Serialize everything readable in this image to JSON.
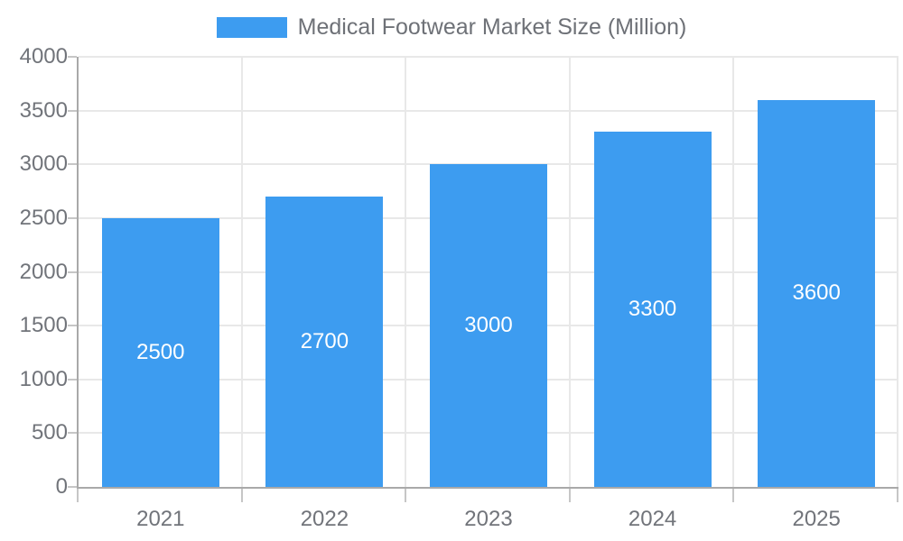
{
  "chart_data": {
    "type": "bar",
    "title": "Medical Footwear Market Size (Million)",
    "legend": {
      "label": "Medical Footwear Market Size (Million)",
      "position": "top"
    },
    "categories": [
      "2021",
      "2022",
      "2023",
      "2024",
      "2025"
    ],
    "series": [
      {
        "name": "Medical Footwear Market Size (Million)",
        "values": [
          2500,
          2700,
          3000,
          3300,
          3600
        ]
      }
    ],
    "data_labels": [
      "2500",
      "2700",
      "3000",
      "3300",
      "3600"
    ],
    "xlabel": "",
    "ylabel": "",
    "ylim": [
      0,
      4000
    ],
    "y_ticks": [
      0,
      500,
      1000,
      1500,
      2000,
      2500,
      3000,
      3500,
      4000
    ],
    "grid": true,
    "colors": {
      "bar": "#3d9cf0",
      "bar_label_text": "#ffffff",
      "axis_text": "#71747a",
      "legend_text": "#6e7177",
      "grid_line": "#e8e8e8",
      "axis_line": "#a9a9a9",
      "tick_line": "#c6c6c6",
      "background": "#ffffff"
    }
  }
}
